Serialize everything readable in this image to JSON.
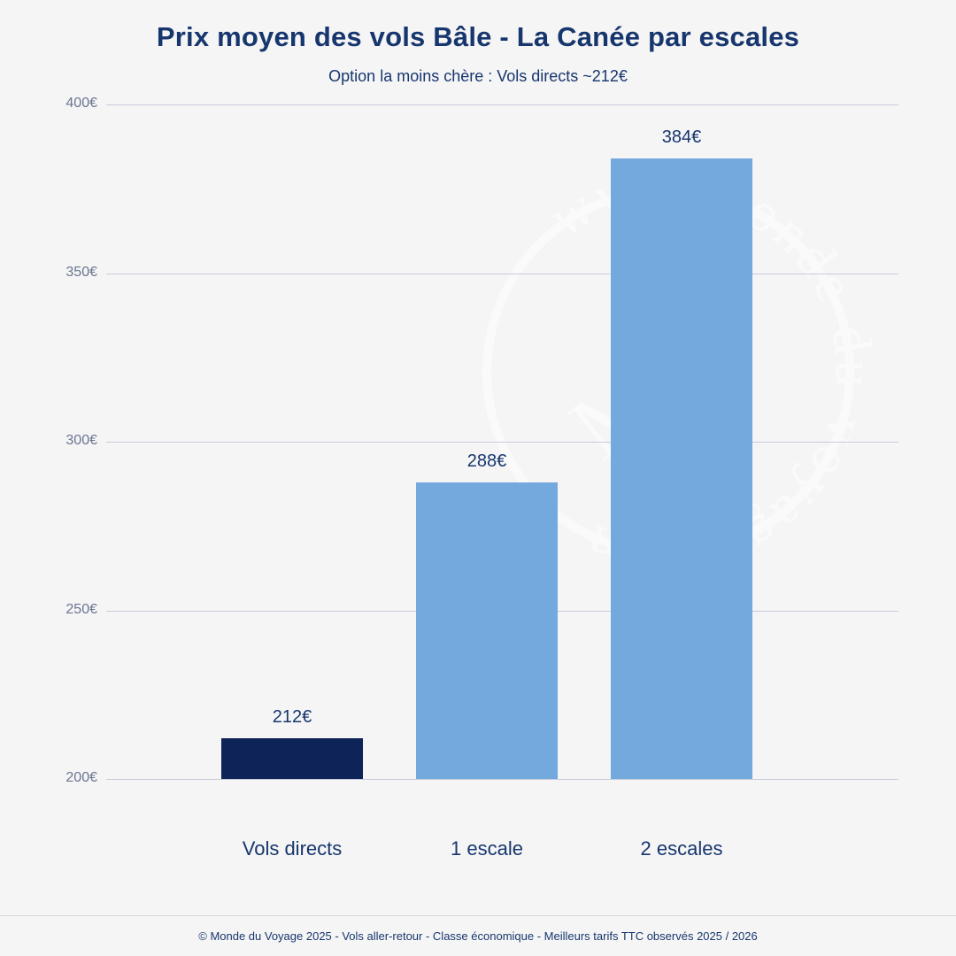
{
  "page": {
    "title": "Prix moyen des vols Bâle - La Canée par escales",
    "subtitle": "Option la moins chère : Vols directs ~212€",
    "footer": "© Monde du Voyage 2025 - Vols aller-retour - Classe économique - Meilleurs tarifs TTC observés 2025 / 2026",
    "watermark": {
      "ring_text": "www.monde-du-voyage.com",
      "center_text": "MDV"
    }
  },
  "chart_data": {
    "type": "bar",
    "title": "Prix moyen des vols Bâle - La Canée par escales",
    "subtitle": "Option la moins chère : Vols directs ~212€",
    "categories": [
      "Vols directs",
      "1 escale",
      "2 escales"
    ],
    "values": [
      212,
      288,
      384
    ],
    "value_labels": [
      "212€",
      "288€",
      "384€"
    ],
    "ylim": [
      200,
      400
    ],
    "yticks": [
      200,
      250,
      300,
      350,
      400
    ],
    "ytick_labels": [
      "200€",
      "250€",
      "300€",
      "350€",
      "400€"
    ],
    "ylabel": "",
    "xlabel": "",
    "grid": true,
    "legend": "none",
    "bar_colors": [
      "#0e2357",
      "#74a9de",
      "#74a9de"
    ],
    "accent_color": "#17366d",
    "background_color": "#f5f5f6"
  }
}
